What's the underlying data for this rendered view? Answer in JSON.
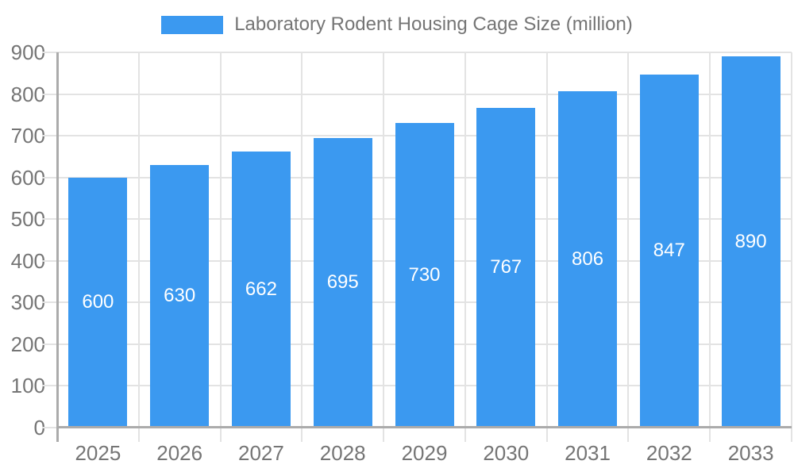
{
  "chart_data": {
    "type": "bar",
    "title": "Laboratory Rodent Housing Cage Size (million)",
    "categories": [
      "2025",
      "2026",
      "2027",
      "2028",
      "2029",
      "2030",
      "2031",
      "2032",
      "2033"
    ],
    "series": [
      {
        "name": "Laboratory Rodent Housing Cage Size (million)",
        "values": [
          600,
          630,
          662,
          695,
          730,
          767,
          806,
          847,
          890
        ]
      }
    ],
    "xlabel": "",
    "ylabel": "",
    "ylim": [
      0,
      900
    ],
    "yticks": [
      0,
      100,
      200,
      300,
      400,
      500,
      600,
      700,
      800,
      900
    ],
    "grid": true,
    "legend_position": "top",
    "value_label_position": "inside-center"
  },
  "style": {
    "bar_color": "#3B99F0",
    "value_label_color": "#FFFFFF",
    "axis_text_color": "#757575",
    "legend_text_color": "#757575",
    "grid_color": "#E3E3E3",
    "axis_line_color": "#ABABAB",
    "background_color": "#FFFFFF"
  }
}
